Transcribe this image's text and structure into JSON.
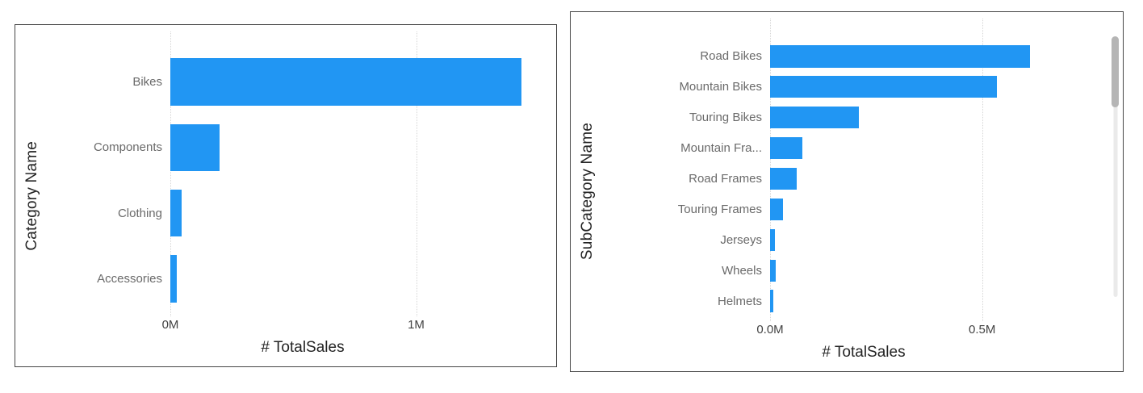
{
  "chart_data": [
    {
      "type": "bar",
      "orientation": "horizontal",
      "title": "",
      "xlabel": "# TotalSales",
      "ylabel": "Category Name",
      "categories": [
        "Bikes",
        "Components",
        "Clothing",
        "Accessories"
      ],
      "values": [
        1.43,
        0.2,
        0.045,
        0.026
      ],
      "value_unit": "millions",
      "xlim": [
        0,
        1.55
      ],
      "xticks": [
        {
          "label": "0M",
          "value": 0
        },
        {
          "label": "1M",
          "value": 1
        }
      ],
      "legend": "none",
      "grid": "vertical-dotted",
      "bar_color": "#2196F3",
      "has_scrollbar": false
    },
    {
      "type": "bar",
      "orientation": "horizontal",
      "title": "",
      "xlabel": "# TotalSales",
      "ylabel": "SubCategory Name",
      "categories": [
        "Road Bikes",
        "Mountain Bikes",
        "Touring Bikes",
        "Mountain Fra...",
        "Road Frames",
        "Touring Frames",
        "Jerseys",
        "Wheels",
        "Helmets"
      ],
      "values": [
        0.613,
        0.534,
        0.209,
        0.077,
        0.062,
        0.03,
        0.012,
        0.013,
        0.008
      ],
      "value_unit": "millions",
      "xlim": [
        0,
        0.79
      ],
      "xticks": [
        {
          "label": "0.0M",
          "value": 0
        },
        {
          "label": "0.5M",
          "value": 0.5
        }
      ],
      "legend": "none",
      "grid": "vertical-dotted",
      "bar_color": "#2196F3",
      "has_scrollbar": true
    }
  ],
  "colors": {
    "bar": "#2196F3",
    "grid": "#D6D6D6",
    "label": "#6A6A6A",
    "tick": "#424242",
    "axis_title": "#242424",
    "border": "#454545",
    "scrollbar_thumb": "#B5B5B5",
    "scrollbar_track": "#EAEAEA",
    "background": "#FFFFFF"
  }
}
